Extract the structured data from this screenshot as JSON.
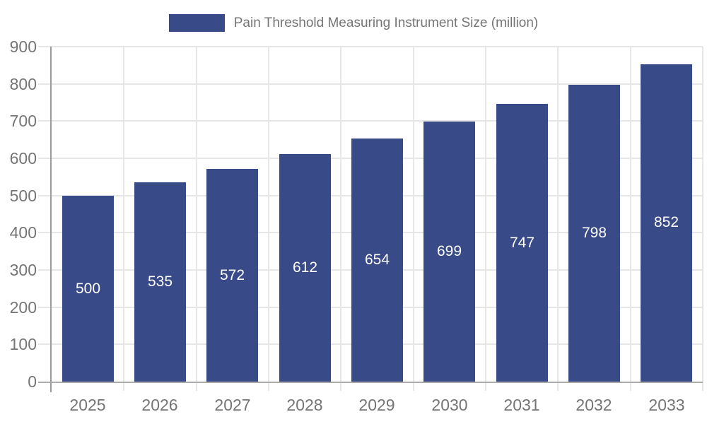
{
  "legend": {
    "label": "Pain Threshold Measuring Instrument Size (million)",
    "swatch_color": "#384A87"
  },
  "chart_data": {
    "type": "bar",
    "title": "Pain Threshold Measuring Instrument Size (million)",
    "categories": [
      "2025",
      "2026",
      "2027",
      "2028",
      "2029",
      "2030",
      "2031",
      "2032",
      "2033"
    ],
    "values": [
      500,
      535,
      572,
      612,
      654,
      699,
      747,
      798,
      852
    ],
    "series": [
      {
        "name": "Pain Threshold Measuring Instrument Size (million)",
        "values": [
          500,
          535,
          572,
          612,
          654,
          699,
          747,
          798,
          852
        ]
      }
    ],
    "xlabel": "",
    "ylabel": "",
    "ylim": [
      0,
      900
    ],
    "ytick_step": 100,
    "yticks": [
      0,
      100,
      200,
      300,
      400,
      500,
      600,
      700,
      800,
      900
    ],
    "grid": true,
    "legend_position": "top",
    "bar_color": "#384A87",
    "value_label_color": "#ffffff",
    "axis_label_color": "#757575",
    "gridline_color": "#e6e6e6"
  }
}
